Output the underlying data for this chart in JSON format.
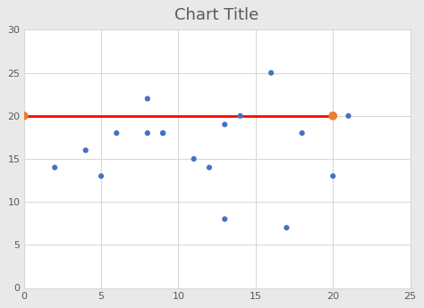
{
  "title": "Chart Title",
  "scatter_x": [
    2,
    4,
    5,
    6,
    8,
    8,
    9,
    9,
    11,
    12,
    13,
    13,
    14,
    16,
    17,
    18,
    20,
    21
  ],
  "scatter_y": [
    14,
    16,
    13,
    18,
    22,
    18,
    18,
    18,
    15,
    14,
    8,
    19,
    20,
    25,
    7,
    18,
    13,
    20
  ],
  "scatter_color": "#4472c4",
  "scatter_size": 20,
  "line_x": [
    0,
    20
  ],
  "line_y": [
    20,
    20
  ],
  "line_color": "#ff0000",
  "line_width": 2.0,
  "endpoint_color": "#ed7d31",
  "endpoint_size": 50,
  "xlim": [
    0,
    25
  ],
  "ylim": [
    0,
    30
  ],
  "xticks": [
    0,
    5,
    10,
    15,
    20,
    25
  ],
  "yticks": [
    0,
    5,
    10,
    15,
    20,
    25,
    30
  ],
  "title_fontsize": 13,
  "title_color": "#595959",
  "bg_color": "#ffffff",
  "outer_bg": "#e9e9e9",
  "grid_color": "#d9d9d9",
  "tick_label_color": "#595959",
  "tick_label_size": 8,
  "spine_color": "#d9d9d9"
}
